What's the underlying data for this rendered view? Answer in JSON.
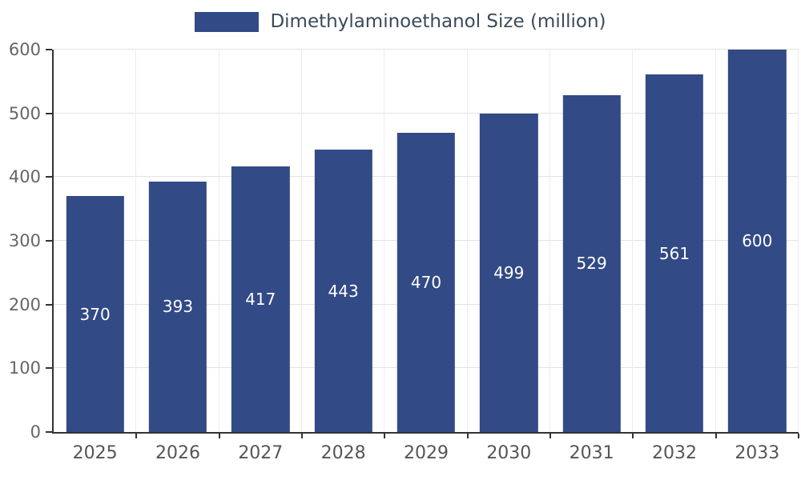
{
  "chart_data": {
    "type": "bar",
    "title": "",
    "legend": "Dimethylaminoethanol Size (million)",
    "categories": [
      "2025",
      "2026",
      "2027",
      "2028",
      "2029",
      "2030",
      "2031",
      "2032",
      "2033"
    ],
    "values": [
      370,
      393,
      417,
      443,
      470,
      499,
      529,
      561,
      600
    ],
    "xlabel": "",
    "ylabel": "",
    "ylim": [
      0,
      600
    ],
    "yticks": [
      0,
      100,
      200,
      300,
      400,
      500,
      600
    ],
    "grid": true,
    "legend_position": "top",
    "colors": {
      "bar": "#324a85",
      "value_label": "#ffffff",
      "axis": "#333333",
      "tick_label": "#666666",
      "category_label": "#555555",
      "legend_text": "#3b4a5a",
      "gridline": "#e2e2e2",
      "background": "#ffffff"
    }
  }
}
